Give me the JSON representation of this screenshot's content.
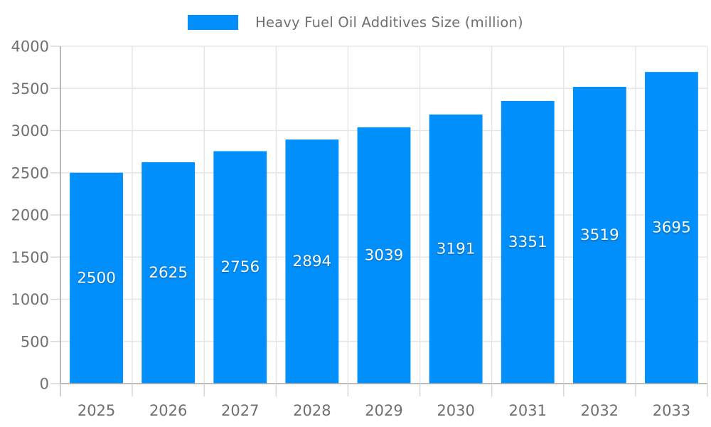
{
  "legend": {
    "label": "Heavy Fuel Oil Additives Size (million)"
  },
  "colors": {
    "bar": "#008FFB",
    "grid": "#e5e5e5",
    "tick": "#d6d6d6",
    "axis": "#a8a8a8",
    "axis_label": "#707070",
    "value_label": "#ffffff",
    "background": "#ffffff"
  },
  "chart_data": {
    "type": "bar",
    "title": "Heavy Fuel Oil Additives Size (million)",
    "series": [
      {
        "name": "Heavy Fuel Oil Additives Size (million)",
        "values": [
          2500,
          2625,
          2756,
          2894,
          3039,
          3191,
          3351,
          3519,
          3695
        ]
      }
    ],
    "categories": [
      "2025",
      "2026",
      "2027",
      "2028",
      "2029",
      "2030",
      "2031",
      "2032",
      "2033"
    ],
    "xlabel": "",
    "ylabel": "",
    "ylim": [
      0,
      4000
    ],
    "y_tick_step": 500,
    "y_ticks": [
      "0",
      "500",
      "1000",
      "1500",
      "2000",
      "2500",
      "3000",
      "3500",
      "4000"
    ],
    "grid": "horizontal and vertical, light gray",
    "legend_position": "top-center",
    "data_labels": "values in white, centered inside bars"
  }
}
